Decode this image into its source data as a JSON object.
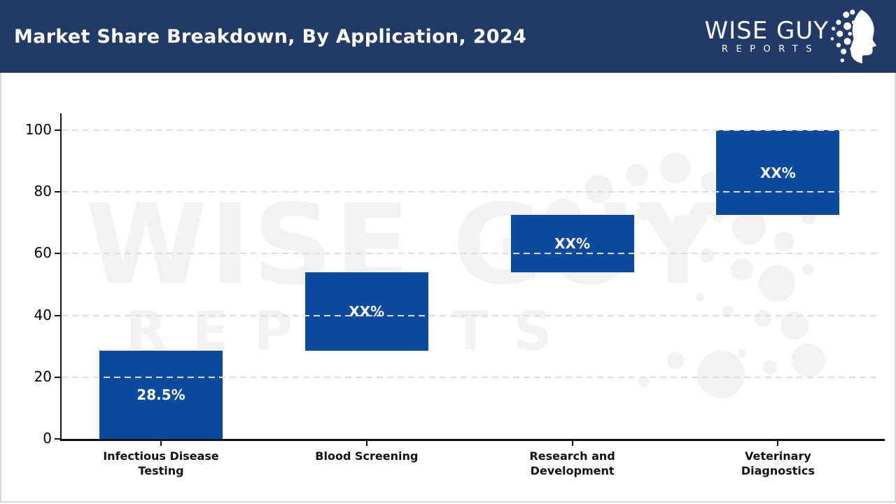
{
  "header": {
    "title": "Market Share Breakdown, By Application, 2024",
    "logo": {
      "line1": "WISE GUY",
      "line2": "REPORTS"
    }
  },
  "watermark": {
    "line1": "WISE GUY",
    "line2": "REPORTS"
  },
  "colors": {
    "header_bg": "#213A66",
    "bar": "#0B4A9F",
    "bar_label": "#FFFFFF",
    "grid": "#DEDEDE",
    "axis": "#111111",
    "watermark": "#F2F2F2"
  },
  "chart_data": {
    "type": "bar",
    "subtype": "waterfall-floating-bars",
    "title": "Market Share Breakdown, By Application, 2024",
    "categories": [
      "Infectious Disease Testing",
      "Blood Screening",
      "Research and Development",
      "Veterinary Diagnostics"
    ],
    "category_lines": [
      [
        "Infectious Disease",
        "Testing"
      ],
      [
        "Blood Screening"
      ],
      [
        "Research and",
        "Development"
      ],
      [
        "Veterinary",
        "Diagnostics"
      ]
    ],
    "segments": [
      {
        "category": "Infectious Disease Testing",
        "start": 0,
        "end": 28.5,
        "label": "28.5%"
      },
      {
        "category": "Blood Screening",
        "start": 28.5,
        "end": 54,
        "label": "XX%"
      },
      {
        "category": "Research and Development",
        "start": 54,
        "end": 72.5,
        "label": "XX%"
      },
      {
        "category": "Veterinary Diagnostics",
        "start": 72.5,
        "end": 100,
        "label": "XX%"
      }
    ],
    "ylim": [
      0,
      100
    ],
    "yticks": [
      0,
      20,
      40,
      60,
      80,
      100
    ],
    "xlabel": "",
    "ylabel": "",
    "grid": "dashed-horizontal",
    "legend": "none"
  }
}
